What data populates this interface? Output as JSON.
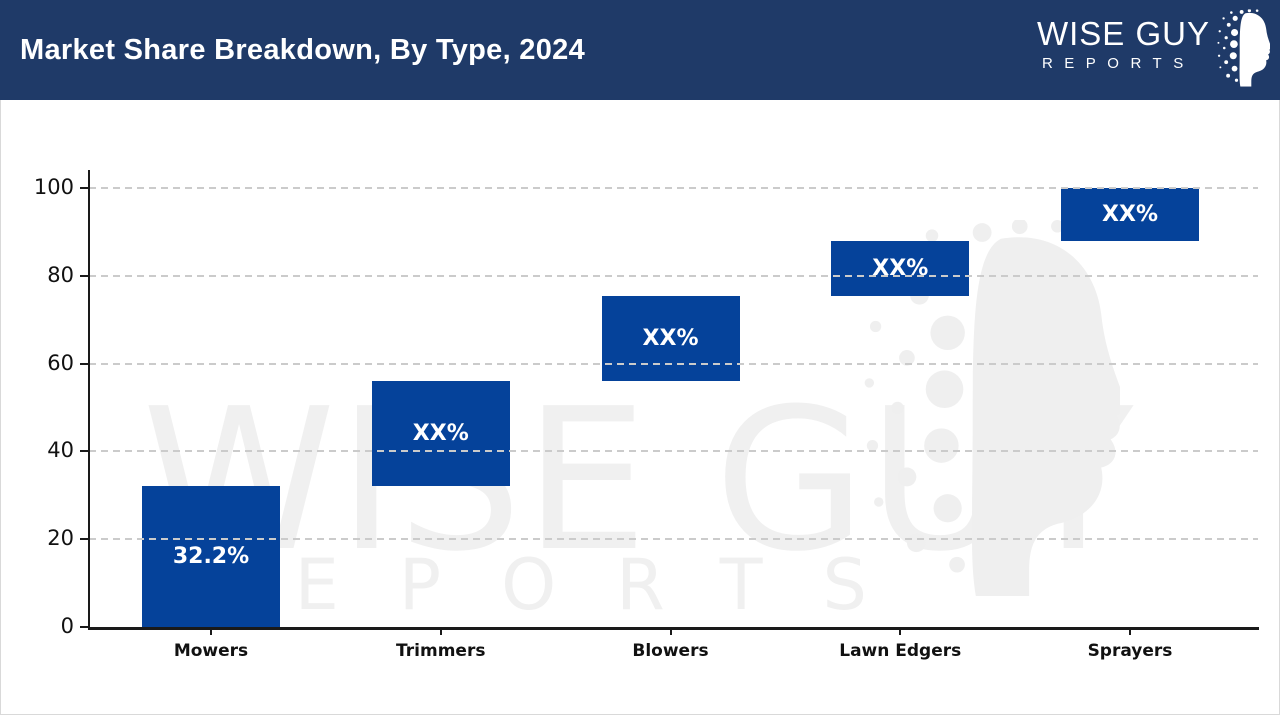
{
  "header": {
    "title": "Market Share Breakdown, By Type, 2024",
    "bg_color": "#1f3a68",
    "logo": {
      "line1": "WISE GUY",
      "line2": "REPORTS"
    }
  },
  "watermark": {
    "line1": "WISE GUY",
    "line2": "REPORTS"
  },
  "chart_data": {
    "type": "bar",
    "subtype": "waterfall",
    "title": "Market Share Breakdown, By Type, 2024",
    "units": "percent",
    "categories": [
      "Mowers",
      "Trimmers",
      "Blowers",
      "Lawn Edgers",
      "Sprayers"
    ],
    "segments": [
      {
        "category": "Mowers",
        "start": 0,
        "end": 32.2,
        "label": "32.2%"
      },
      {
        "category": "Trimmers",
        "start": 32.2,
        "end": 56.0,
        "label": "XX%"
      },
      {
        "category": "Blowers",
        "start": 56.0,
        "end": 75.3,
        "label": "XX%"
      },
      {
        "category": "Lawn Edgers",
        "start": 75.3,
        "end": 87.9,
        "label": "XX%"
      },
      {
        "category": "Sprayers",
        "start": 87.9,
        "end": 100.0,
        "label": "XX%"
      }
    ],
    "ylim": [
      0,
      100
    ],
    "yticks": [
      0,
      20,
      40,
      60,
      80,
      100
    ],
    "xlabel": "",
    "ylabel": "",
    "grid": "horizontal-dashed",
    "grid_above_bars": true,
    "legend": "none",
    "colors": {
      "bar": "#05429a",
      "bar_label": "#ffffff",
      "grid": "#cbcbcb",
      "axis": "#1a1a1a",
      "tick_label": "#111111",
      "header_bg": "#1f3a68",
      "watermark": "#f0f0f0"
    }
  }
}
